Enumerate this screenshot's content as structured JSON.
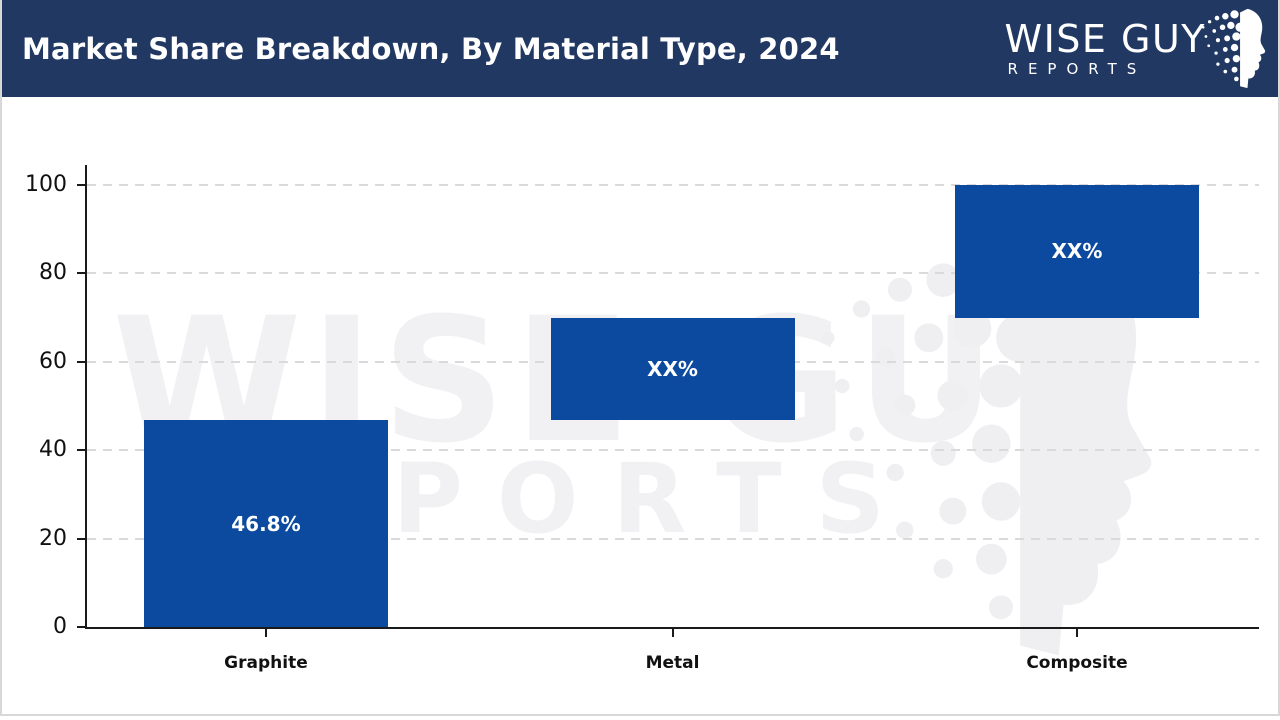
{
  "header": {
    "title": "Market Share Breakdown, By Material Type, 2024",
    "logo": {
      "wordmark": "WISE GUY",
      "subtext": "REPORTS"
    }
  },
  "watermark": {
    "line1": "WISE GUY",
    "line2": "REPORTS"
  },
  "chart_data": {
    "type": "bar",
    "subtype": "waterfall",
    "title": "Market Share Breakdown, By Material Type, 2024",
    "categories": [
      "Graphite",
      "Metal",
      "Composite"
    ],
    "segments": [
      {
        "category": "Graphite",
        "start": 0,
        "end": 46.8,
        "label": "46.8%"
      },
      {
        "category": "Metal",
        "start": 46.8,
        "end": 70,
        "label": "XX%"
      },
      {
        "category": "Composite",
        "start": 70,
        "end": 100,
        "label": "XX%"
      }
    ],
    "yticks": [
      0,
      20,
      40,
      60,
      80,
      100
    ],
    "ylim": [
      0,
      104.5
    ],
    "xlabel": "",
    "ylabel": "",
    "grid": "dashed horizontal",
    "legend": "none",
    "bar_color": "#0b4a9f",
    "bar_label_color": "#ffffff"
  },
  "colors": {
    "header_bg": "#213863",
    "bar": "#0b4a9f",
    "watermark": "#f1f1f4",
    "axis": "#1a1a1a",
    "grid": "#dadada"
  }
}
